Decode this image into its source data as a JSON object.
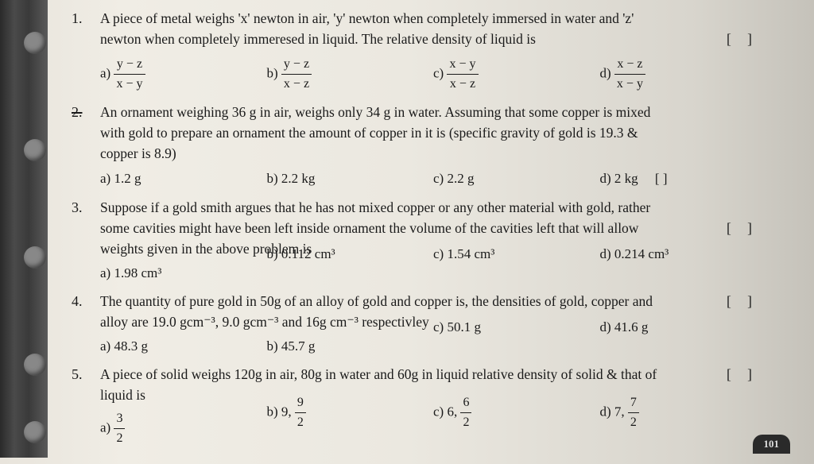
{
  "holes": [
    40,
    175,
    310,
    445,
    530
  ],
  "q1": {
    "num": "1.",
    "text_l1": "A piece of metal weighs 'x' newton in air, 'y' newton when completely immersed in water and 'z'",
    "text_l2": "newton when completely immeresed in liquid. The relative density of liquid is",
    "bracket": "[ ]",
    "a_label": "a)",
    "a_num": "y − z",
    "a_den": "x − y",
    "b_label": "b)",
    "b_num": "y − z",
    "b_den": "x − z",
    "c_label": "c)",
    "c_num": "x − y",
    "c_den": "x − z",
    "d_label": "d)",
    "d_num": "x − z",
    "d_den": "x − y"
  },
  "q2": {
    "num": "2.",
    "text_l1": "An ornament weighing 36 g in air, weighs only 34 g in water. Assuming that some copper is mixed",
    "text_l2": "with gold to prepare an ornament the amount of copper in it is (specific gravity of gold is 19.3 &",
    "text_l3": "copper is 8.9)",
    "a": "a) 1.2 g",
    "b": "b) 2.2 kg",
    "c": "c) 2.2 g",
    "d": "d) 2 kg",
    "bracket": "[ ]"
  },
  "q3": {
    "num": "3.",
    "text_l1": "Suppose if a gold smith argues that he has not mixed copper or any other material with gold, rather",
    "text_l2": "some cavities might have been left inside ornament the volume of the cavities left that will allow",
    "text_l3": "weights given in the above problem is",
    "bracket": "[ ]",
    "a": "a) 1.98 cm³",
    "b": "b) 0.112 cm³",
    "c": "c) 1.54 cm³",
    "d": "d) 0.214 cm³"
  },
  "q4": {
    "num": "4.",
    "text_l1": "The quantity of pure gold in 50g of an alloy of gold and copper is, the densities of gold, copper and",
    "text_l2": "alloy are 19.0 gcm⁻³, 9.0 gcm⁻³ and 16g cm⁻³ respectivley",
    "bracket": "[ ]",
    "a": "a) 48.3 g",
    "b": "b) 45.7 g",
    "c": "c) 50.1 g",
    "d": "d) 41.6 g"
  },
  "q5": {
    "num": "5.",
    "text_l1": "A piece of solid weighs 120g in air, 80g in water and 60g in liquid relative density of solid & that of",
    "text_l2": "liquid is",
    "bracket": "[ ]",
    "a_pre": "a)",
    "a_num": "3",
    "a_den": "2",
    "b_pre": "b) 9,",
    "b_num": "9",
    "b_den": "2",
    "c_pre": "c) 6,",
    "c_num": "6",
    "c_den": "2",
    "d_pre": "d) 7,",
    "d_num": "7",
    "d_den": "2"
  },
  "corner": "101"
}
